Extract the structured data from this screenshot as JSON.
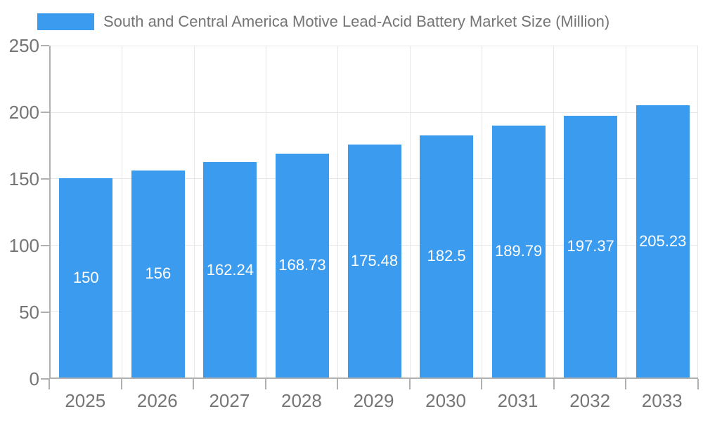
{
  "chart_data": {
    "type": "bar",
    "title": "South and Central America Motive Lead-Acid Battery Market Size (Million)",
    "categories": [
      "2025",
      "2026",
      "2027",
      "2028",
      "2029",
      "2030",
      "2031",
      "2032",
      "2033"
    ],
    "values": [
      150,
      156,
      162.24,
      168.73,
      175.48,
      182.5,
      189.79,
      197.37,
      205.23
    ],
    "value_labels": [
      "150",
      "156",
      "162.24",
      "168.73",
      "175.48",
      "182.5",
      "189.79",
      "197.37",
      "205.23"
    ],
    "xlabel": "",
    "ylabel": "",
    "ylim": [
      0,
      250
    ],
    "y_ticks": [
      0,
      50,
      100,
      150,
      200,
      250
    ],
    "grid": true,
    "legend_position": "top-left",
    "value_label_position": "center-of-bar"
  },
  "colors": {
    "bar": "#3b9bee",
    "axis_text": "#757575",
    "value_text": "#ffffff",
    "axis_line": "#b0b0b0",
    "gridline": "#e7e7e7",
    "background": "#ffffff"
  }
}
